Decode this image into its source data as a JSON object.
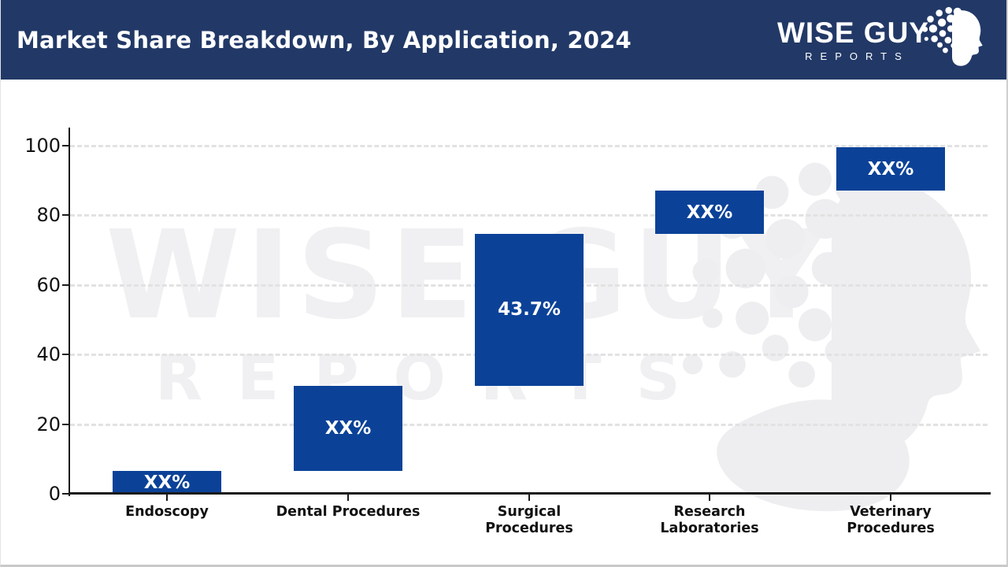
{
  "header": {
    "title": "Market Share Breakdown, By Application, 2024",
    "logo": {
      "line1": "WISE GUY",
      "line2": "REPORTS"
    }
  },
  "watermark": {
    "line1": "WISE GUY",
    "line2": "REPORTS"
  },
  "chart_data": {
    "type": "bar",
    "subtype": "floating-waterfall",
    "title": "Market Share Breakdown, By Application, 2024",
    "categories": [
      [
        "Endoscopy"
      ],
      [
        "Dental Procedures"
      ],
      [
        "Surgical",
        "Procedures"
      ],
      [
        "Research",
        "Laboratories"
      ],
      [
        "Veterinary",
        "Procedures"
      ]
    ],
    "segments": [
      {
        "name": "Endoscopy",
        "start": 0,
        "end": 6.5,
        "label": "XX%"
      },
      {
        "name": "Dental Procedures",
        "start": 6.5,
        "end": 31,
        "label": "XX%"
      },
      {
        "name": "Surgical Procedures",
        "start": 31,
        "end": 74.7,
        "label": "43.7%"
      },
      {
        "name": "Research Laboratories",
        "start": 74.7,
        "end": 87,
        "label": "XX%"
      },
      {
        "name": "Veterinary Procedures",
        "start": 87,
        "end": 99.5,
        "label": "XX%"
      }
    ],
    "yticks": [
      0,
      20,
      40,
      60,
      80,
      100
    ],
    "ylim": [
      0,
      105
    ],
    "xlabel": "",
    "ylabel": "",
    "grid": "horizontal-dashed",
    "legend": "none",
    "bar_color": "#0b4298",
    "bar_label_color": "#ffffff",
    "axis_color": "#1a1a1a",
    "gridline_color": "#e2e2e2"
  },
  "colors": {
    "header_bg": "#223967",
    "page_bg": "#ffffff",
    "watermark": "#f0f0f2"
  }
}
